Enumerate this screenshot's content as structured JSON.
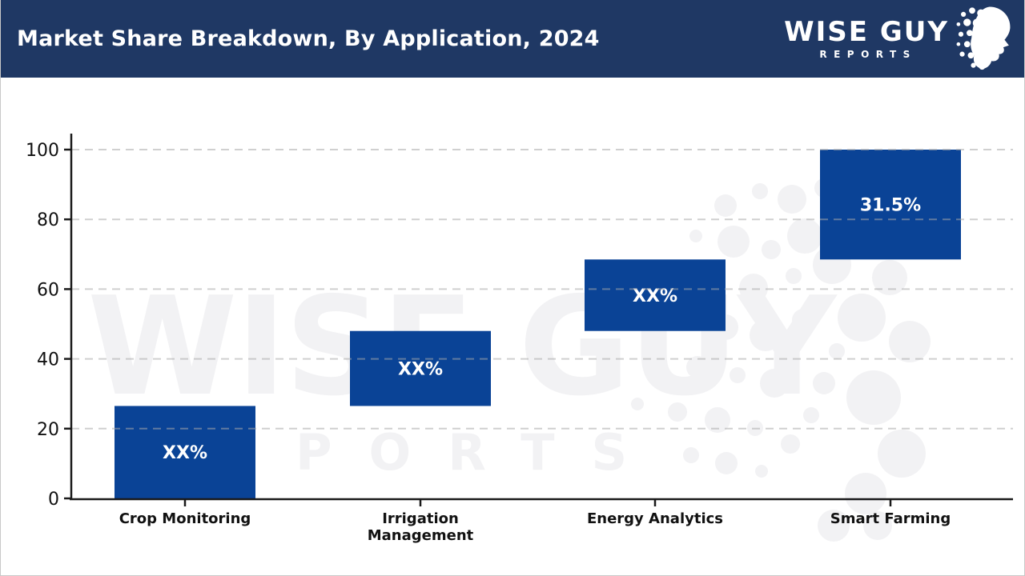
{
  "header": {
    "title": "Market Share Breakdown, By Application, 2024",
    "logo": {
      "line1": "WISE GUY",
      "line2": "REPORTS"
    }
  },
  "watermark": {
    "line1": "WISE GUY",
    "line2": "REPORTS"
  },
  "colors": {
    "header_bg": "#1f3864",
    "bar": "#0a4396",
    "axis": "#1a1a1a",
    "grid": "rgba(170,170,170,0.55)",
    "bar_label": "#ffffff",
    "tick_label": "#111111",
    "watermark": "#f2f2f4"
  },
  "chart_data": {
    "type": "bar",
    "subtype": "floating-waterfall",
    "title": "Market Share Breakdown, By Application, 2024",
    "categories": [
      "Crop Monitoring",
      "Irrigation Management",
      "Energy Analytics",
      "Smart Farming"
    ],
    "segments": [
      {
        "category": "Crop Monitoring",
        "start": 0,
        "end": 26.5,
        "label": "XX%"
      },
      {
        "category": "Irrigation Management",
        "start": 26.5,
        "end": 48,
        "label": "XX%"
      },
      {
        "category": "Energy Analytics",
        "start": 48,
        "end": 68.5,
        "label": "XX%"
      },
      {
        "category": "Smart Farming",
        "start": 68.5,
        "end": 100,
        "label": "31.5%"
      }
    ],
    "xlabel": "",
    "ylabel": "",
    "ylim": [
      0,
      100
    ],
    "yticks": [
      0,
      20,
      40,
      60,
      80,
      100
    ],
    "grid": "horizontal-dashed",
    "legend": "none"
  }
}
